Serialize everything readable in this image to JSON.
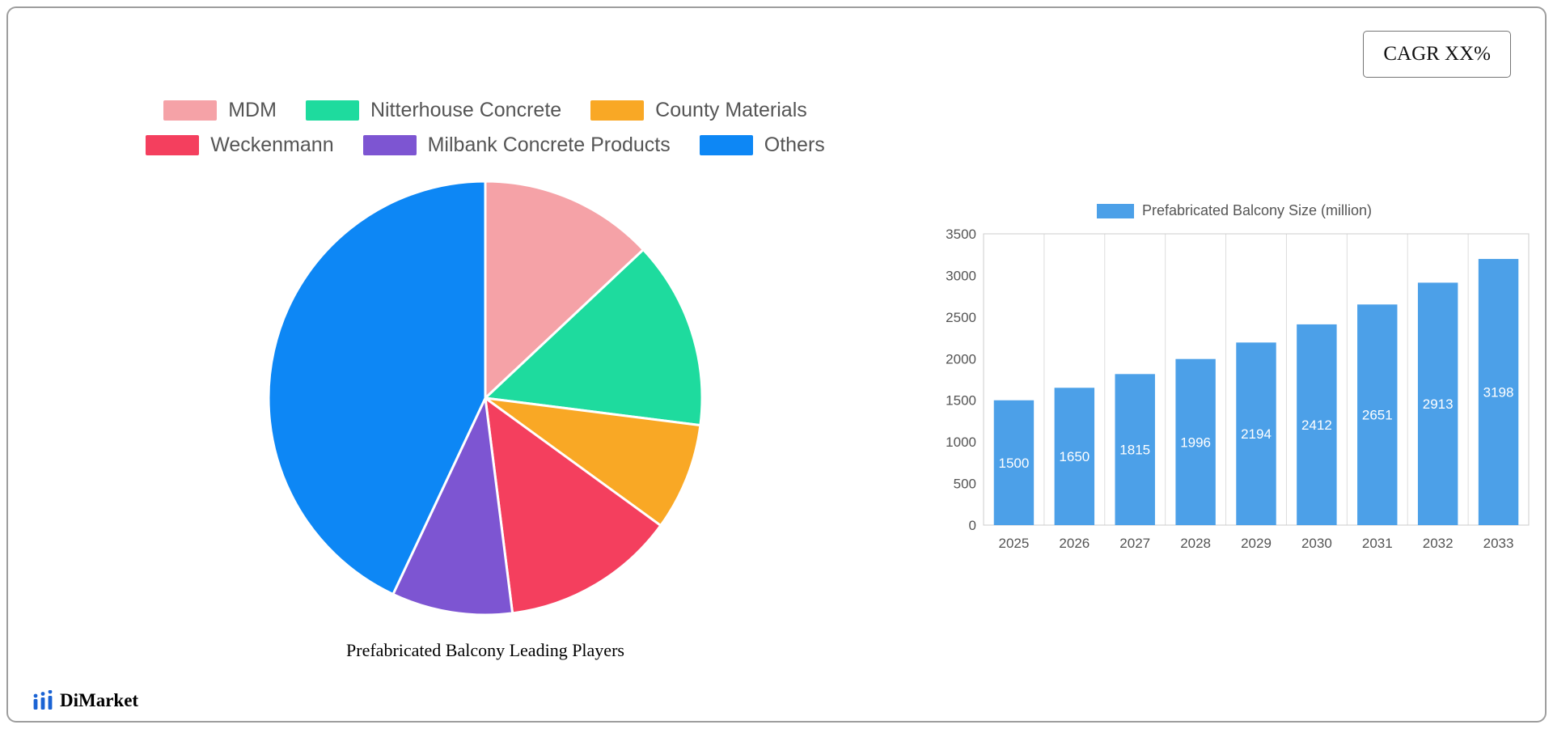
{
  "card": {
    "cagr_label": "CAGR XX%"
  },
  "branding": {
    "logo_text": "DiMarket",
    "logo_color": "#1a63d4"
  },
  "chart_data": [
    {
      "type": "pie",
      "title": "Prefabricated Balcony Leading Players",
      "legend_position": "top",
      "labels": [
        "MDM",
        "Nitterhouse Concrete",
        "County Materials",
        "Weckenmann",
        "Milbank Concrete Products",
        "Others"
      ],
      "values": [
        13,
        14,
        8,
        13,
        9,
        43
      ],
      "colors": [
        "#F5A2A7",
        "#1EDB9E",
        "#F9A825",
        "#F43F5E",
        "#7D55D2",
        "#0D87F5"
      ],
      "legend_rows": [
        [
          0,
          1,
          2
        ],
        [
          3,
          4,
          5
        ]
      ]
    },
    {
      "type": "bar",
      "categories": [
        "2025",
        "2026",
        "2027",
        "2028",
        "2029",
        "2030",
        "2031",
        "2032",
        "2033"
      ],
      "series": [
        {
          "name": "Prefabricated Balcony Size (million)",
          "values": [
            1500,
            1650,
            1815,
            1996,
            2194,
            2412,
            2651,
            2913,
            3198
          ]
        }
      ],
      "title": "",
      "xlabel": "",
      "ylabel": "",
      "ylim": [
        0,
        3500
      ],
      "ytick_step": 500,
      "bar_color": "#4CA0E8",
      "value_label_color": "#ffffff",
      "axis_text_color": "#545454",
      "grid": "vertical",
      "legend_position": "top"
    }
  ]
}
